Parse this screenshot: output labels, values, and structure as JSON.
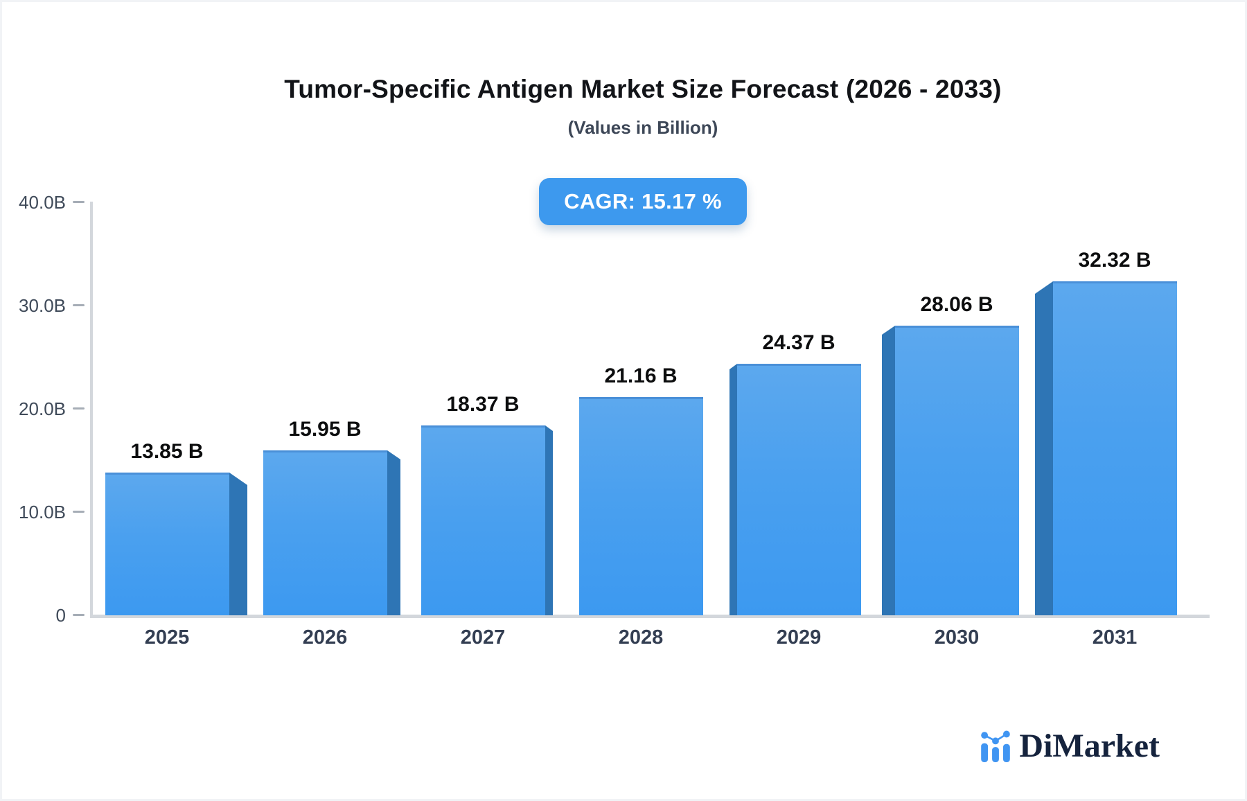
{
  "header": {
    "title": "Tumor-Specific Antigen Market Size Forecast (2026 - 2033)",
    "subtitle": "(Values in Billion)",
    "cagr_badge_label": "CAGR: 15.17 %"
  },
  "chart_data": {
    "type": "bar",
    "title": "Tumor-Specific Antigen Market Size Forecast (2026 - 2033)",
    "subtitle": "(Values in Billion)",
    "xlabel": "",
    "ylabel": "",
    "categories": [
      "2025",
      "2026",
      "2027",
      "2028",
      "2029",
      "2030",
      "2031"
    ],
    "values": [
      13.85,
      15.95,
      18.37,
      21.16,
      24.37,
      28.06,
      32.32
    ],
    "value_labels": [
      "13.85 B",
      "15.95 B",
      "18.37 B",
      "21.16 B",
      "24.37 B",
      "28.06 B",
      "32.32 B"
    ],
    "unit": "Billion",
    "ylim": [
      0,
      40
    ],
    "yticks": [
      {
        "label": "40.0B",
        "value": 40
      },
      {
        "label": "30.0B",
        "value": 30
      },
      {
        "label": "20.0B",
        "value": 20
      },
      {
        "label": "10.0B",
        "value": 10
      },
      {
        "label": "0",
        "value": 0
      }
    ],
    "grid": false,
    "legend": "none",
    "bar_style": "3d-extruded",
    "colors": {
      "bar_top": "#5ca8ee",
      "bar_bottom": "#3c99f0",
      "bar_top_edge": "#4a90d8",
      "bar_side": "#2e75b5",
      "axis": "#d3d7dc",
      "tick_text": "#3f4a59",
      "category_text": "#333e52",
      "value_text": "#0c0d0e",
      "badge_bg": "#3d99ee",
      "badge_text": "#ffffff"
    }
  },
  "branding": {
    "name": "DiMarket",
    "logo_icon": "mini-bar-line-chart-icon",
    "logo_blue": "#4095f2"
  }
}
